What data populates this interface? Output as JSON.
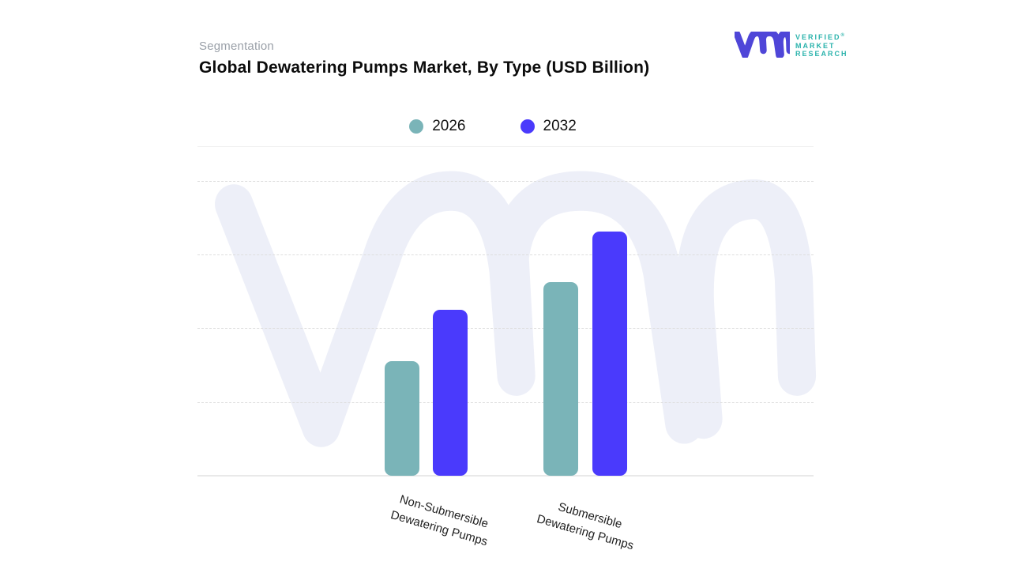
{
  "header": {
    "eyebrow": "Segmentation",
    "title": "Global Dewatering Pumps Market, By Type (USD Billion)"
  },
  "logo": {
    "glyph_icon": "vmr-monogram",
    "glyph_color": "#4f46d8",
    "wordmark_color": "#2bb3ac",
    "brand_lines": [
      "VERIFIED",
      "MARKET",
      "RESEARCH"
    ],
    "registered_mark": "®"
  },
  "legend": {
    "position": "top",
    "items": [
      {
        "label": "2026",
        "color": "#7ab4b8"
      },
      {
        "label": "2032",
        "color": "#4a3afc"
      }
    ]
  },
  "xaxis": {
    "labels": [
      [
        "Non-Submersible",
        "Dewatering Pumps"
      ],
      [
        "Submersible",
        "Dewatering Pumps"
      ]
    ]
  },
  "chart_data": {
    "type": "bar",
    "title": "Global Dewatering Pumps Market, By Type (USD Billion)",
    "unit": "USD Billion",
    "categories": [
      "Non-Submersible Dewatering Pumps",
      "Submersible Dewatering Pumps"
    ],
    "series": [
      {
        "name": "2026",
        "color": "#7ab4b8",
        "values_relative_pct": [
          38.8,
          65.5
        ]
      },
      {
        "name": "2032",
        "color": "#4a3afc",
        "values_relative_pct": [
          56.2,
          82.6
        ]
      }
    ],
    "value_axis": {
      "tick_labels_visible": false,
      "gridline_count": 4,
      "gridline_style": "dashed"
    },
    "legend_position": "top-center",
    "note": "No numeric value-axis labels are shown in the figure; values are bar heights as % of the plotted axis range (top gridline = 100)."
  },
  "colors": {
    "series_2026_teal": "#7ab4b8",
    "series_2032_blue": "#4a3afc",
    "watermark": "#edeff8",
    "gridline": "#dedede",
    "baseline": "#e9e9e9",
    "title_text": "#0c0c0c",
    "eyebrow_text": "#9aa0a8"
  }
}
